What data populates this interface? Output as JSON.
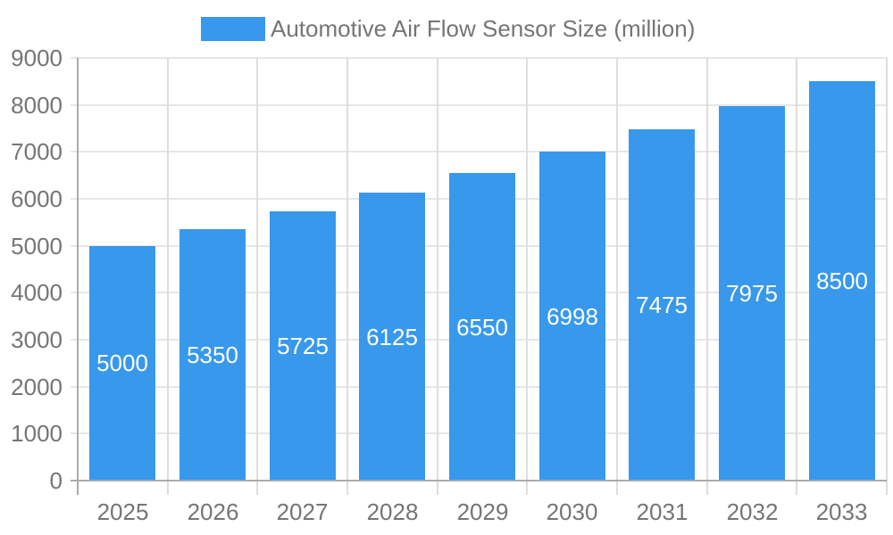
{
  "legend": {
    "label": "Automotive Air Flow Sensor Size (million)"
  },
  "colors": {
    "bar": "#3898EC",
    "grid_h": "#E6E6E6",
    "grid_v": "#DEDEDE",
    "axis": "#ABABAB",
    "axis_label": "#757575",
    "value_label": "#FFFFFF",
    "background": "#FFFFFF"
  },
  "chart_data": {
    "type": "bar",
    "title": "Automotive Air Flow Sensor Size (million)",
    "categories": [
      "2025",
      "2026",
      "2027",
      "2028",
      "2029",
      "2030",
      "2031",
      "2032",
      "2033"
    ],
    "values": [
      5000,
      5350,
      5725,
      6125,
      6550,
      6998,
      7475,
      7975,
      8500
    ],
    "series": [
      {
        "name": "Automotive Air Flow Sensor Size (million)",
        "values": [
          5000,
          5350,
          5725,
          6125,
          6550,
          6998,
          7475,
          7975,
          8500
        ]
      }
    ],
    "ylim": [
      0,
      9000
    ],
    "yticks": [
      0,
      1000,
      2000,
      3000,
      4000,
      5000,
      6000,
      7000,
      8000,
      9000
    ],
    "grid": "both",
    "legend_position": "top-center",
    "value_labels": "inside-middle-white"
  }
}
